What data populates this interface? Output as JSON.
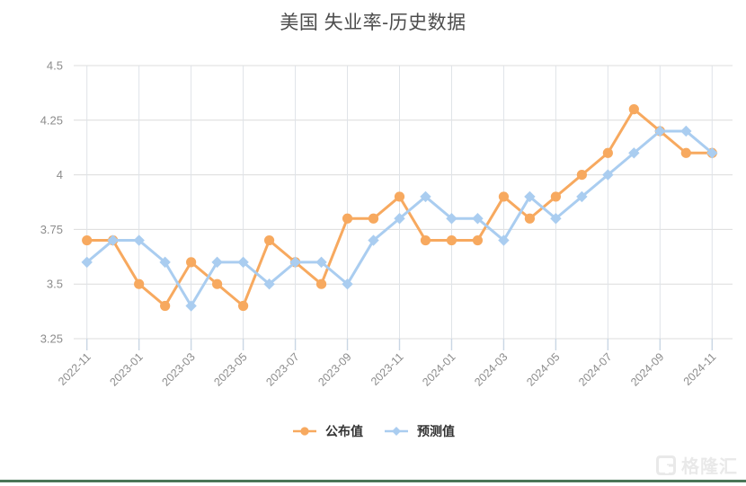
{
  "page": {
    "title": "美国 失业率-历史数据"
  },
  "chart_data": {
    "type": "line",
    "title": "美国 失业率-历史数据",
    "x": [
      "2022-11",
      "2022-12",
      "2023-01",
      "2023-02",
      "2023-03",
      "2023-04",
      "2023-05",
      "2023-06",
      "2023-07",
      "2023-08",
      "2023-09",
      "2023-10",
      "2023-11",
      "2023-12",
      "2024-01",
      "2024-02",
      "2024-03",
      "2024-04",
      "2024-05",
      "2024-06",
      "2024-07",
      "2024-08",
      "2024-09",
      "2024-10",
      "2024-11"
    ],
    "x_tick_labels": [
      "2022-11",
      "2023-01",
      "2023-03",
      "2023-05",
      "2023-07",
      "2023-09",
      "2023-11",
      "2024-01",
      "2024-03",
      "2024-05",
      "2024-07",
      "2024-09",
      "2024-11"
    ],
    "y_ticks": [
      "4.5",
      "4.25",
      "4",
      "3.75",
      "3.5",
      "3.25"
    ],
    "ylim": [
      3.25,
      4.5
    ],
    "grid": true,
    "legend_position": "bottom",
    "series": [
      {
        "name": "公布值",
        "marker": "circle",
        "values": [
          3.7,
          3.7,
          3.5,
          3.4,
          3.6,
          3.5,
          3.4,
          3.7,
          3.6,
          3.5,
          3.8,
          3.8,
          3.9,
          3.7,
          3.7,
          3.7,
          3.9,
          3.8,
          3.9,
          4.0,
          4.1,
          4.3,
          4.2,
          4.1,
          4.1
        ]
      },
      {
        "name": "预测值",
        "marker": "diamond",
        "values": [
          3.6,
          3.7,
          3.7,
          3.6,
          3.4,
          3.6,
          3.6,
          3.5,
          3.6,
          3.6,
          3.5,
          3.7,
          3.8,
          3.9,
          3.8,
          3.8,
          3.7,
          3.9,
          3.8,
          3.9,
          4.0,
          4.1,
          4.2,
          4.2,
          4.1
        ]
      }
    ]
  },
  "watermark": {
    "text": "格隆汇"
  },
  "colors": {
    "published": "#f7a95f",
    "forecast": "#aacdf0",
    "title": "#4d4d4d",
    "legend_text": "#333333",
    "axis_label": "#8c8c8c",
    "grid": "#dcdcdc",
    "vertical_grid": "#dfe3e8",
    "tick": "#c9d6e4",
    "watermark": "#e9e9e9",
    "bottom_bar": "#4a7657"
  }
}
